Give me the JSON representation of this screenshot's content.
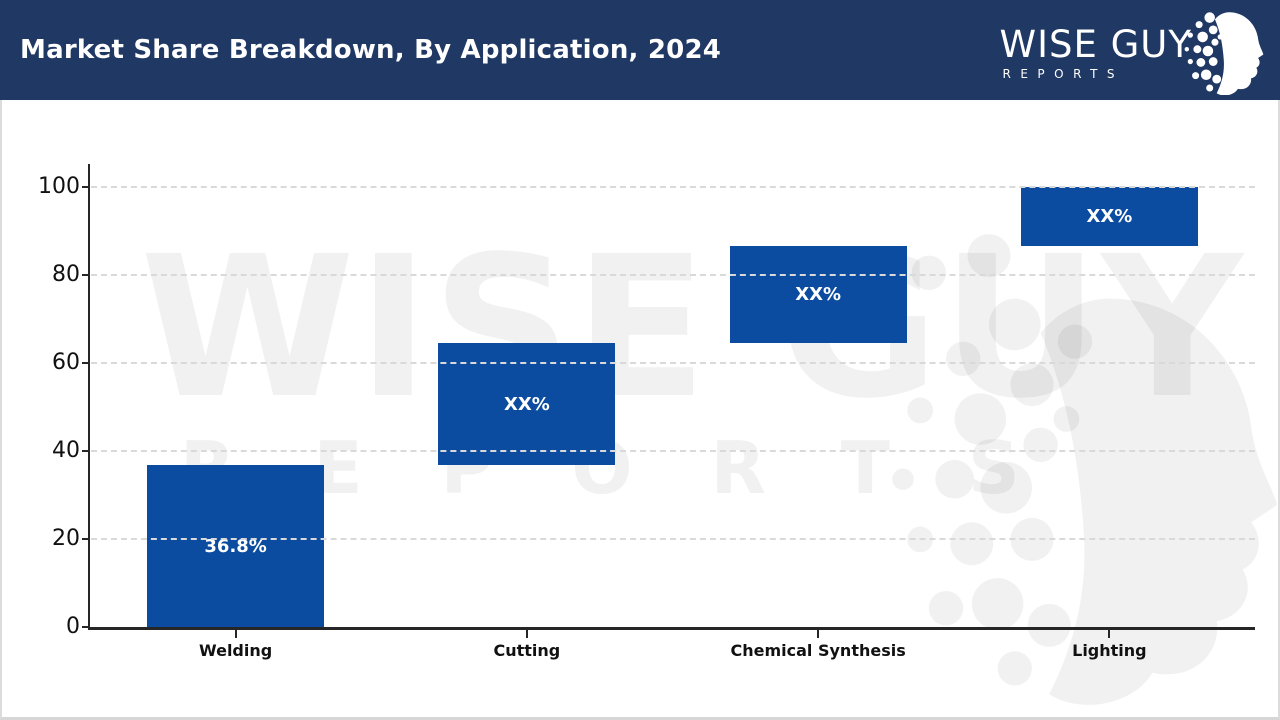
{
  "header": {
    "title": "Market Share Breakdown, By Application, 2024",
    "bg_color": "#1f3864",
    "logo": {
      "line1": "WISE GUY",
      "line2": "REPORTS"
    }
  },
  "watermark": {
    "line1": "WISE GUY",
    "line2": "REPORTS"
  },
  "chart_data": {
    "type": "bar",
    "subtype": "waterfall",
    "title": "Market Share Breakdown, By Application, 2024",
    "categories": [
      "Welding",
      "Cutting",
      "Chemical Synthesis",
      "Lighting"
    ],
    "series": [
      {
        "name": "Market share (%)",
        "starts": [
          0,
          36.8,
          64.5,
          86.6
        ],
        "ends": [
          36.8,
          64.5,
          86.6,
          100
        ]
      }
    ],
    "bar_labels": [
      "36.8%",
      "XX%",
      "XX%",
      "XX%"
    ],
    "xlabel": "",
    "ylabel": "",
    "ylim": [
      0,
      105
    ],
    "yticks": [
      0,
      20,
      40,
      60,
      80,
      100
    ],
    "grid": "horizontal-dashed",
    "gridline_color": "#d9d9d9",
    "legend": "none",
    "bar_color": "#0c4ca0",
    "bar_label_color": "#ffffff",
    "axis_color": "#262626"
  }
}
